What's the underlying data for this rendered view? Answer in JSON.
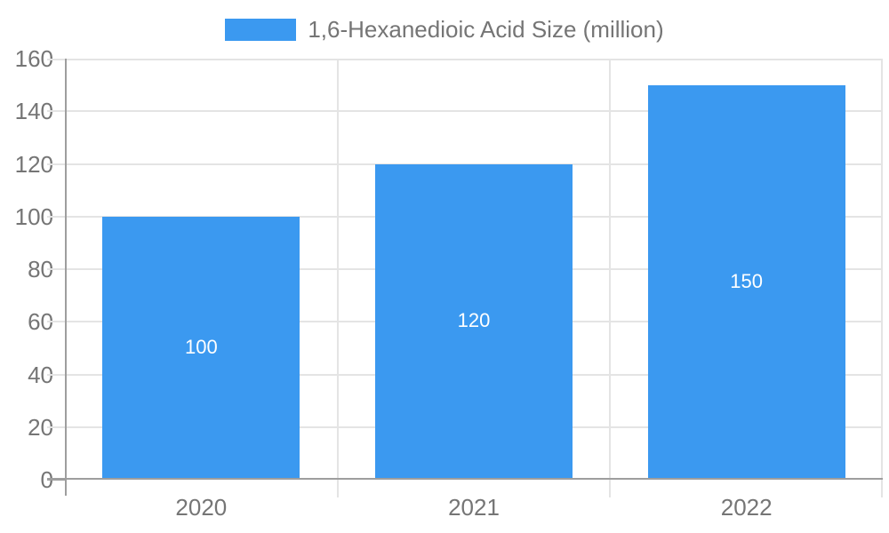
{
  "legend": {
    "label": "1,6-Hexanedioic Acid Size (million)"
  },
  "chart_data": {
    "type": "bar",
    "categories": [
      "2020",
      "2021",
      "2022"
    ],
    "series": [
      {
        "name": "1,6-Hexanedioic Acid Size (million)",
        "values": [
          100,
          120,
          150
        ]
      }
    ],
    "data_labels": [
      "100",
      "120",
      "150"
    ],
    "xlabel": "",
    "ylabel": "",
    "ylim": [
      0,
      160
    ],
    "y_ticks": [
      0,
      20,
      40,
      60,
      80,
      100,
      120,
      140,
      160
    ],
    "grid": true,
    "legend_position": "top-center",
    "colors": {
      "bar": "#3B99F0",
      "grid": "#E4E4E4",
      "axis": "#9E9E9E",
      "label": "#757575",
      "data_label": "#FFFFFF"
    }
  }
}
